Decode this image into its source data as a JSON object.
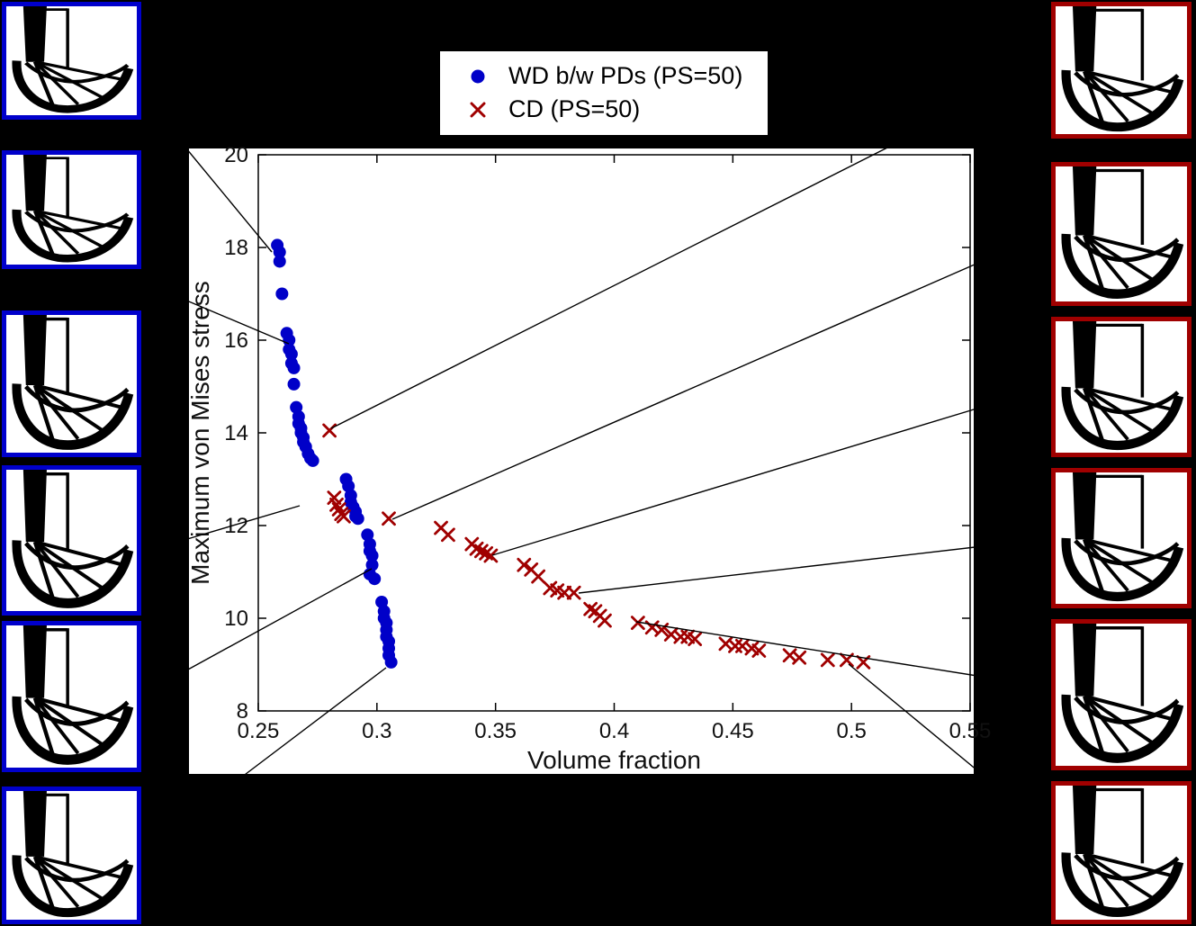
{
  "page": {
    "background": "#000000",
    "panel_background": "#ffffff"
  },
  "legend": {
    "entries": [
      {
        "label": "WD b/w PDs (PS=50)",
        "marker": "circle",
        "color": "#0000C8"
      },
      {
        "label": "CD (PS=50)",
        "marker": "x",
        "color": "#A00000"
      }
    ]
  },
  "chart_data": {
    "type": "scatter",
    "title": "",
    "xlabel": "Volume fraction",
    "ylabel": "Maximum von Mises stress",
    "xlim": [
      0.25,
      0.55
    ],
    "ylim": [
      8,
      20
    ],
    "xticks": [
      0.25,
      0.3,
      0.35,
      0.4,
      0.45,
      0.5,
      0.55
    ],
    "xtick_labels": [
      "0.25",
      "0.3",
      "0.35",
      "0.4",
      "0.45",
      "0.5",
      "0.55"
    ],
    "yticks": [
      8,
      10,
      12,
      14,
      16,
      18,
      20
    ],
    "ytick_labels": [
      "8",
      "10",
      "12",
      "14",
      "16",
      "18",
      "20"
    ],
    "grid": false,
    "legend_position": "top-center-outside",
    "series": [
      {
        "name": "WD b/w PDs (PS=50)",
        "marker": "circle",
        "color": "#0000C8",
        "points": [
          [
            0.258,
            18.05
          ],
          [
            0.259,
            17.9
          ],
          [
            0.259,
            17.7
          ],
          [
            0.26,
            17.0
          ],
          [
            0.262,
            16.15
          ],
          [
            0.263,
            16.0
          ],
          [
            0.263,
            15.8
          ],
          [
            0.264,
            15.7
          ],
          [
            0.264,
            15.5
          ],
          [
            0.265,
            15.4
          ],
          [
            0.265,
            15.05
          ],
          [
            0.266,
            14.55
          ],
          [
            0.267,
            14.35
          ],
          [
            0.267,
            14.2
          ],
          [
            0.268,
            14.1
          ],
          [
            0.268,
            14.0
          ],
          [
            0.269,
            13.9
          ],
          [
            0.269,
            13.8
          ],
          [
            0.27,
            13.7
          ],
          [
            0.271,
            13.55
          ],
          [
            0.272,
            13.45
          ],
          [
            0.273,
            13.4
          ],
          [
            0.287,
            13.0
          ],
          [
            0.288,
            12.85
          ],
          [
            0.289,
            12.65
          ],
          [
            0.289,
            12.5
          ],
          [
            0.29,
            12.4
          ],
          [
            0.291,
            12.3
          ],
          [
            0.291,
            12.2
          ],
          [
            0.292,
            12.15
          ],
          [
            0.296,
            11.8
          ],
          [
            0.297,
            11.6
          ],
          [
            0.297,
            11.45
          ],
          [
            0.298,
            11.35
          ],
          [
            0.298,
            11.15
          ],
          [
            0.297,
            10.95
          ],
          [
            0.299,
            10.85
          ],
          [
            0.302,
            10.35
          ],
          [
            0.303,
            10.15
          ],
          [
            0.303,
            10.0
          ],
          [
            0.304,
            9.9
          ],
          [
            0.304,
            9.75
          ],
          [
            0.304,
            9.6
          ],
          [
            0.305,
            9.5
          ],
          [
            0.305,
            9.35
          ],
          [
            0.305,
            9.2
          ],
          [
            0.306,
            9.05
          ]
        ]
      },
      {
        "name": "CD (PS=50)",
        "marker": "x",
        "color": "#A00000",
        "points": [
          [
            0.28,
            14.05
          ],
          [
            0.282,
            12.6
          ],
          [
            0.283,
            12.45
          ],
          [
            0.284,
            12.35
          ],
          [
            0.285,
            12.25
          ],
          [
            0.286,
            12.2
          ],
          [
            0.305,
            12.15
          ],
          [
            0.327,
            11.95
          ],
          [
            0.33,
            11.8
          ],
          [
            0.34,
            11.6
          ],
          [
            0.342,
            11.5
          ],
          [
            0.344,
            11.45
          ],
          [
            0.346,
            11.4
          ],
          [
            0.348,
            11.35
          ],
          [
            0.362,
            11.15
          ],
          [
            0.365,
            11.05
          ],
          [
            0.368,
            10.9
          ],
          [
            0.373,
            10.65
          ],
          [
            0.376,
            10.6
          ],
          [
            0.379,
            10.55
          ],
          [
            0.383,
            10.55
          ],
          [
            0.39,
            10.2
          ],
          [
            0.392,
            10.15
          ],
          [
            0.394,
            10.05
          ],
          [
            0.396,
            9.95
          ],
          [
            0.41,
            9.9
          ],
          [
            0.416,
            9.8
          ],
          [
            0.42,
            9.75
          ],
          [
            0.424,
            9.65
          ],
          [
            0.428,
            9.6
          ],
          [
            0.431,
            9.6
          ],
          [
            0.434,
            9.55
          ],
          [
            0.447,
            9.45
          ],
          [
            0.451,
            9.4
          ],
          [
            0.454,
            9.4
          ],
          [
            0.458,
            9.35
          ],
          [
            0.461,
            9.3
          ],
          [
            0.474,
            9.2
          ],
          [
            0.478,
            9.15
          ],
          [
            0.49,
            9.1
          ],
          [
            0.498,
            9.1
          ],
          [
            0.505,
            9.05
          ]
        ]
      }
    ],
    "leader_lines": [
      [
        [
          302,
          280
        ],
        [
          193,
          148
        ]
      ],
      [
        [
          321,
          382
        ],
        [
          198,
          330
        ]
      ],
      [
        [
          333,
          562
        ],
        [
          198,
          602
        ]
      ],
      [
        [
          413,
          632
        ],
        [
          198,
          750
        ]
      ],
      [
        [
          429,
          742
        ],
        [
          260,
          870
        ]
      ],
      [
        [
          368,
          476
        ],
        [
          1002,
          156
        ]
      ],
      [
        [
          436,
          577
        ],
        [
          1092,
          290
        ]
      ],
      [
        [
          547,
          617
        ],
        [
          1092,
          452
        ]
      ],
      [
        [
          643,
          659
        ],
        [
          1092,
          607
        ]
      ],
      [
        [
          707,
          691
        ],
        [
          1092,
          752
        ]
      ],
      [
        [
          943,
          738
        ],
        [
          1098,
          866
        ]
      ]
    ]
  },
  "thumbnails": {
    "left": {
      "border_color": "#0000CC",
      "items": [
        {
          "name": "wd-design-1"
        },
        {
          "name": "wd-design-2"
        },
        {
          "name": "wd-design-3"
        },
        {
          "name": "wd-design-4"
        },
        {
          "name": "wd-design-5"
        },
        {
          "name": "wd-design-6"
        }
      ]
    },
    "right": {
      "border_color": "#A00000",
      "items": [
        {
          "name": "cd-design-1"
        },
        {
          "name": "cd-design-2"
        },
        {
          "name": "cd-design-3"
        },
        {
          "name": "cd-design-4"
        },
        {
          "name": "cd-design-5"
        },
        {
          "name": "cd-design-6"
        }
      ]
    }
  }
}
